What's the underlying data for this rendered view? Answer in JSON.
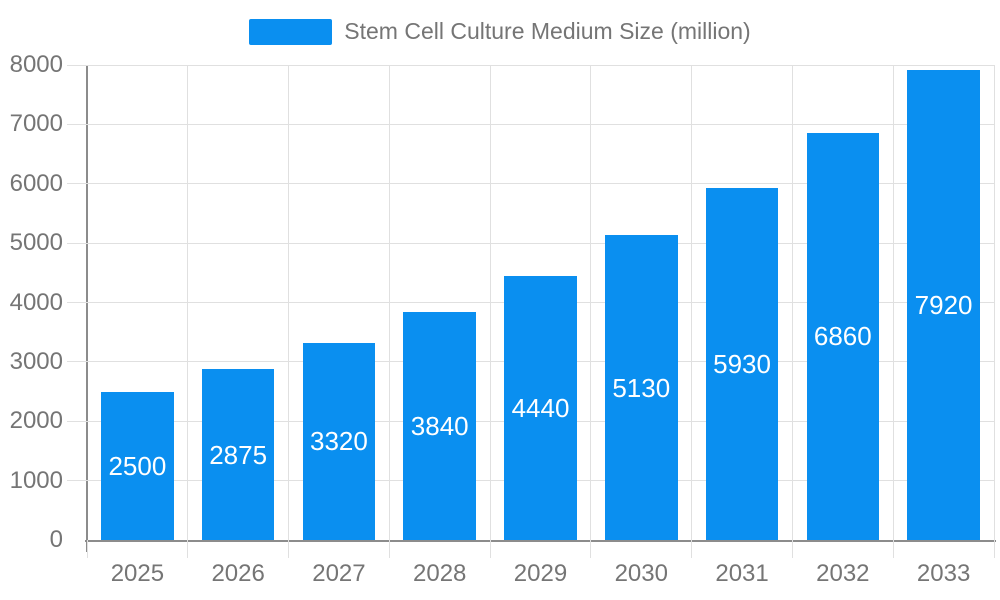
{
  "legend": {
    "label": "Stem Cell Culture Medium Size (million)",
    "swatch_color": "#0a8ff0"
  },
  "chart_data": {
    "type": "bar",
    "title": "Stem Cell Culture Medium Size (million)",
    "series": [
      {
        "name": "Stem Cell Culture Medium Size (million)",
        "values": [
          2500,
          2875,
          3320,
          3840,
          4440,
          5130,
          5930,
          6860,
          7920
        ]
      }
    ],
    "categories": [
      "2025",
      "2026",
      "2027",
      "2028",
      "2029",
      "2030",
      "2031",
      "2032",
      "2033"
    ],
    "data_labels": [
      "2500",
      "2875",
      "3320",
      "3840",
      "4440",
      "5130",
      "5930",
      "6860",
      "7920"
    ],
    "xlabel": "",
    "ylabel": "",
    "ylim": [
      0,
      8000
    ],
    "ytick_interval": 1000,
    "yticks": [
      "0",
      "1000",
      "2000",
      "3000",
      "4000",
      "5000",
      "6000",
      "7000",
      "8000"
    ],
    "grid": true,
    "legend_position": "top",
    "bar_color": "#0a8ff0",
    "bar_label_color": "#ffffff",
    "axis_text_color": "#757575",
    "gridline_color": "#e0e0e0",
    "axis_line_color": "#8c8c8c",
    "background_color": "#ffffff"
  }
}
